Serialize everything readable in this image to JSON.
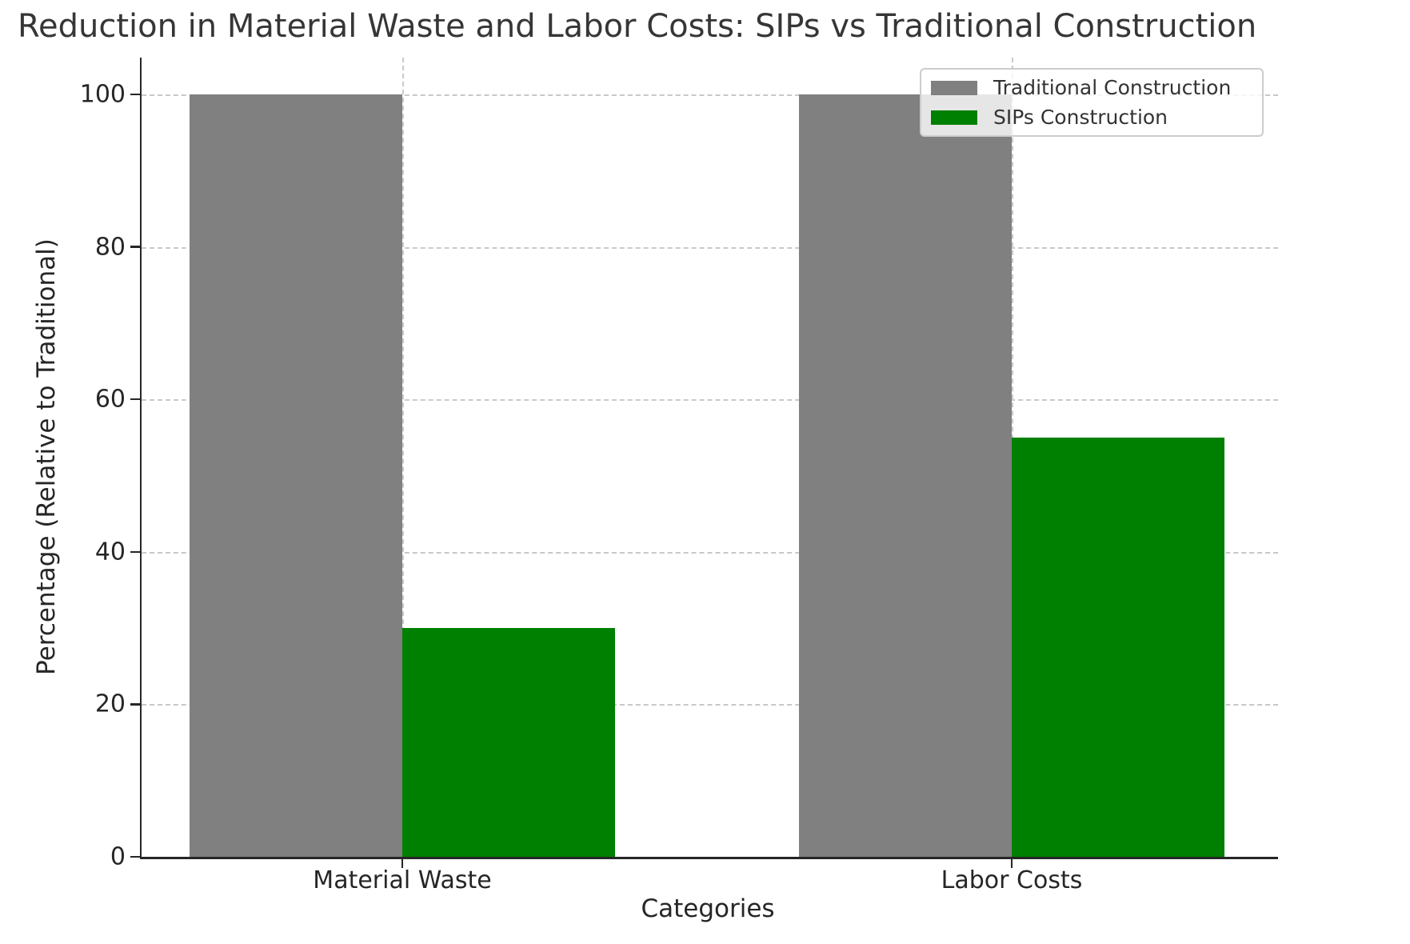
{
  "chart_data": {
    "type": "bar",
    "title": "Reduction in Material Waste and Labor Costs: SIPs vs Traditional Construction",
    "xlabel": "Categories",
    "ylabel": "Percentage (Relative to Traditional)",
    "categories": [
      "Material Waste",
      "Labor Costs"
    ],
    "series": [
      {
        "name": "Traditional Construction",
        "color": "#808080",
        "values": [
          100,
          100
        ]
      },
      {
        "name": "SIPs Construction",
        "color": "#008000",
        "values": [
          30,
          55
        ]
      }
    ],
    "ylim": [
      0,
      105
    ],
    "yticks": [
      0,
      20,
      40,
      60,
      80,
      100
    ],
    "grid": {
      "horizontal": true,
      "vertical": true,
      "style": "dashed",
      "color": "#c9c9c9"
    },
    "legend": {
      "position": "upper right"
    }
  },
  "style": {
    "spine_color": "#262626",
    "text_color": "#262626",
    "title_color": "#363636",
    "legend_border": "#cccccc",
    "legend_background": "rgba(255,255,255,0.8)",
    "figure_background": "#ffffff"
  }
}
